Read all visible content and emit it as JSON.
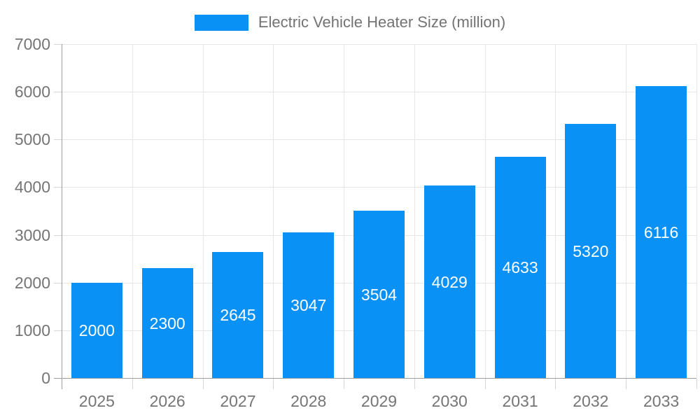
{
  "chart_data": {
    "type": "bar",
    "title": "Electric Vehicle Heater Size (million)",
    "categories": [
      "2025",
      "2026",
      "2027",
      "2028",
      "2029",
      "2030",
      "2031",
      "2032",
      "2033"
    ],
    "values": [
      2000,
      2300,
      2645,
      3047,
      3504,
      4029,
      4633,
      5320,
      6116
    ],
    "xlabel": "",
    "ylabel": "",
    "ylim": [
      0,
      7000
    ],
    "yticks": [
      0,
      1000,
      2000,
      3000,
      4000,
      5000,
      6000,
      7000
    ],
    "grid": "both",
    "legend_position": "top-center",
    "value_labels": "inside-center",
    "colors": {
      "bar": "#0a91f5",
      "grid": "#e6e6e6",
      "tick": "#d6d6d6",
      "axis_line": "#9e9e9e",
      "legend_text": "#737373",
      "axis_text": "#757575",
      "value_label_text": "#ffffff",
      "background": "#ffffff"
    }
  }
}
